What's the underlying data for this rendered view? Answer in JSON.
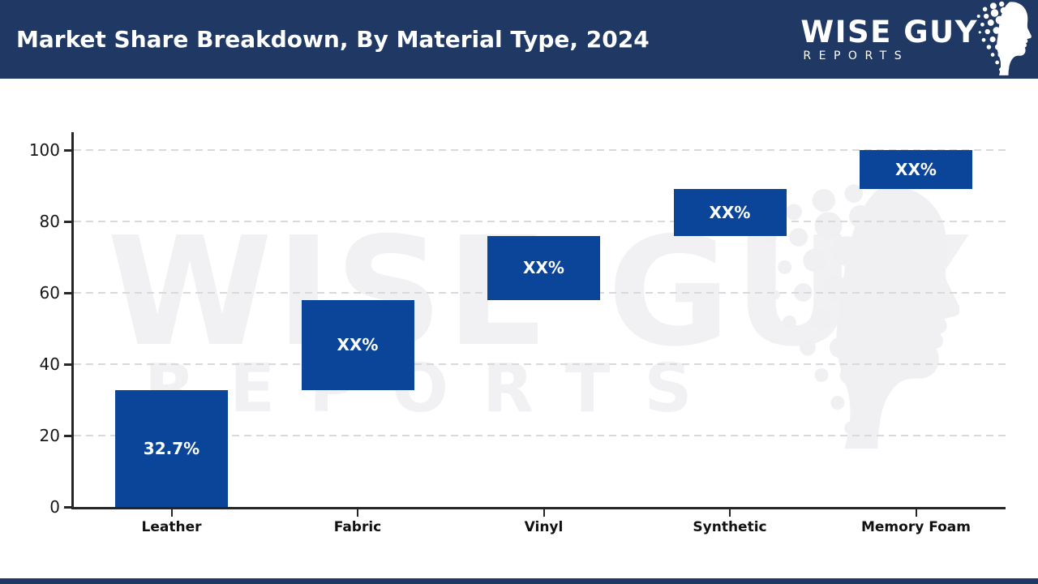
{
  "header": {
    "title": "Market Share Breakdown, By Material Type, 2024",
    "logo": {
      "name": "WISE GUY",
      "subtext": "REPORTS"
    }
  },
  "watermark": {
    "name": "WISE GUY",
    "subtext": "REPORTS"
  },
  "chart_data": {
    "type": "bar",
    "subtype": "waterfall",
    "title": "Market Share Breakdown, By Material Type, 2024",
    "xlabel": "",
    "ylabel": "",
    "categories": [
      "Leather",
      "Fabric",
      "Vinyl",
      "Synthetic",
      "Memory Foam"
    ],
    "segments": [
      {
        "category": "Leather",
        "start": 0,
        "end": 32.7,
        "label": "32.7%"
      },
      {
        "category": "Fabric",
        "start": 32.7,
        "end": 58,
        "label": "XX%"
      },
      {
        "category": "Vinyl",
        "start": 58,
        "end": 76,
        "label": "XX%"
      },
      {
        "category": "Synthetic",
        "start": 76,
        "end": 89,
        "label": "XX%"
      },
      {
        "category": "Memory Foam",
        "start": 89,
        "end": 100,
        "label": "XX%"
      }
    ],
    "ylim": [
      0,
      100
    ],
    "y_ticks": [
      0,
      20,
      40,
      60,
      80,
      100
    ],
    "grid": "horizontal dashed",
    "legend": "none",
    "bar_color": "#0b4599",
    "label_color": "#ffffff"
  },
  "colors": {
    "header_bg": "#1f3864",
    "footer_bg": "#1f3864",
    "bar": "#0b4599",
    "axis": "#262626",
    "gridline": "#d9d9d9",
    "watermark": "#f1f1f4",
    "title_text": "#ffffff"
  }
}
